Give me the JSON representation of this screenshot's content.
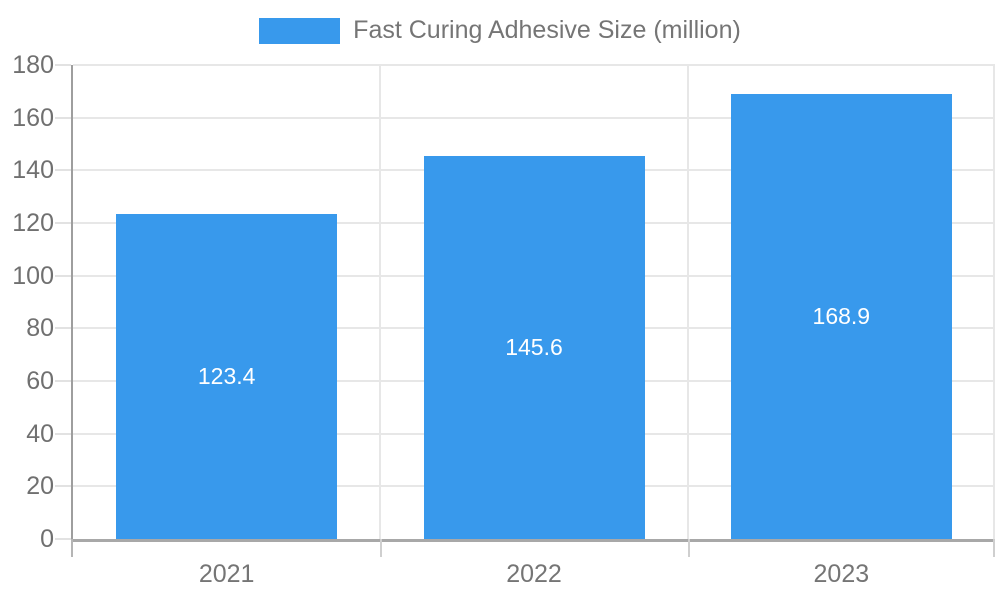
{
  "chart_data": {
    "type": "bar",
    "title": "",
    "legend": {
      "label": "Fast Curing Adhesive Size (million)",
      "position": "top-center"
    },
    "categories": [
      "2021",
      "2022",
      "2023"
    ],
    "series": [
      {
        "name": "Fast Curing Adhesive Size (million)",
        "values": [
          123.4,
          145.6,
          168.9
        ],
        "value_labels": [
          "123.4",
          "145.6",
          "168.9"
        ]
      }
    ],
    "xlabel": "",
    "ylabel": "",
    "ylim": [
      0,
      180
    ],
    "ytick_interval": 20,
    "ytick_labels": [
      "0",
      "20",
      "40",
      "60",
      "80",
      "100",
      "120",
      "140",
      "160",
      "180"
    ],
    "grid": true,
    "value_labels_position": "center-inside",
    "colors": {
      "bar": "#3899EC",
      "value_label": "#FFFFFF",
      "axis_text": "#757575",
      "axis_line": "#9E9E9E",
      "gridline": "#E7E7E7",
      "tick": "#CFCFCF",
      "background": "#FFFFFF"
    }
  }
}
